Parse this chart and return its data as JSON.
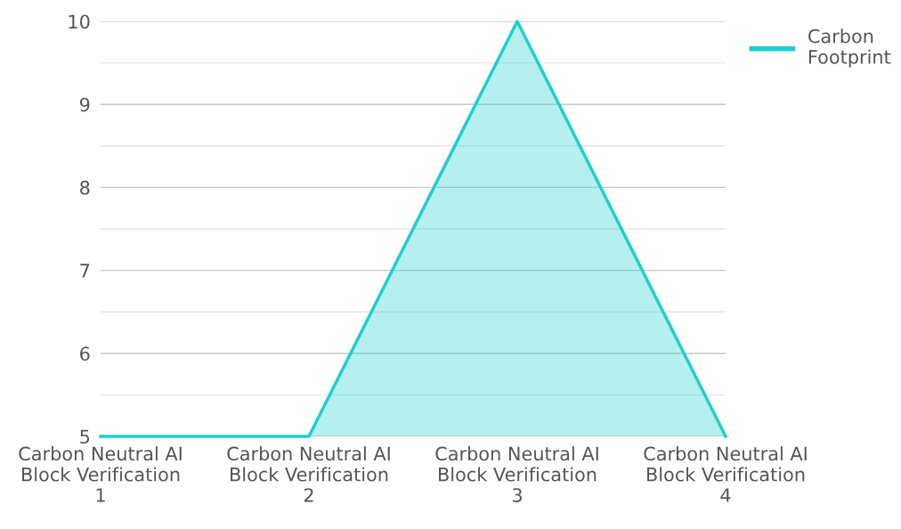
{
  "chart_data": {
    "type": "area",
    "categories": [
      "Carbon Neutral AI\nBlock Verification\n1",
      "Carbon Neutral AI\nBlock Verification\n2",
      "Carbon Neutral AI\nBlock Verification\n3",
      "Carbon Neutral AI\nBlock Verification\n4"
    ],
    "series": [
      {
        "name": "Carbon Footprint",
        "color": "#1ecfcf",
        "values": [
          5,
          5,
          10,
          5
        ]
      }
    ],
    "ylim": [
      5,
      10
    ],
    "yticks": [
      5,
      {
        "value": 5.5,
        "label": null
      },
      6,
      {
        "value": 6.5,
        "label": null
      },
      7,
      {
        "value": 7.5,
        "label": null
      },
      8,
      {
        "value": 8.5,
        "label": null
      },
      9,
      {
        "value": 9.5,
        "label": null
      },
      10
    ],
    "grid": "y",
    "legend": "top right",
    "marker": "none",
    "line_style": "solid"
  }
}
